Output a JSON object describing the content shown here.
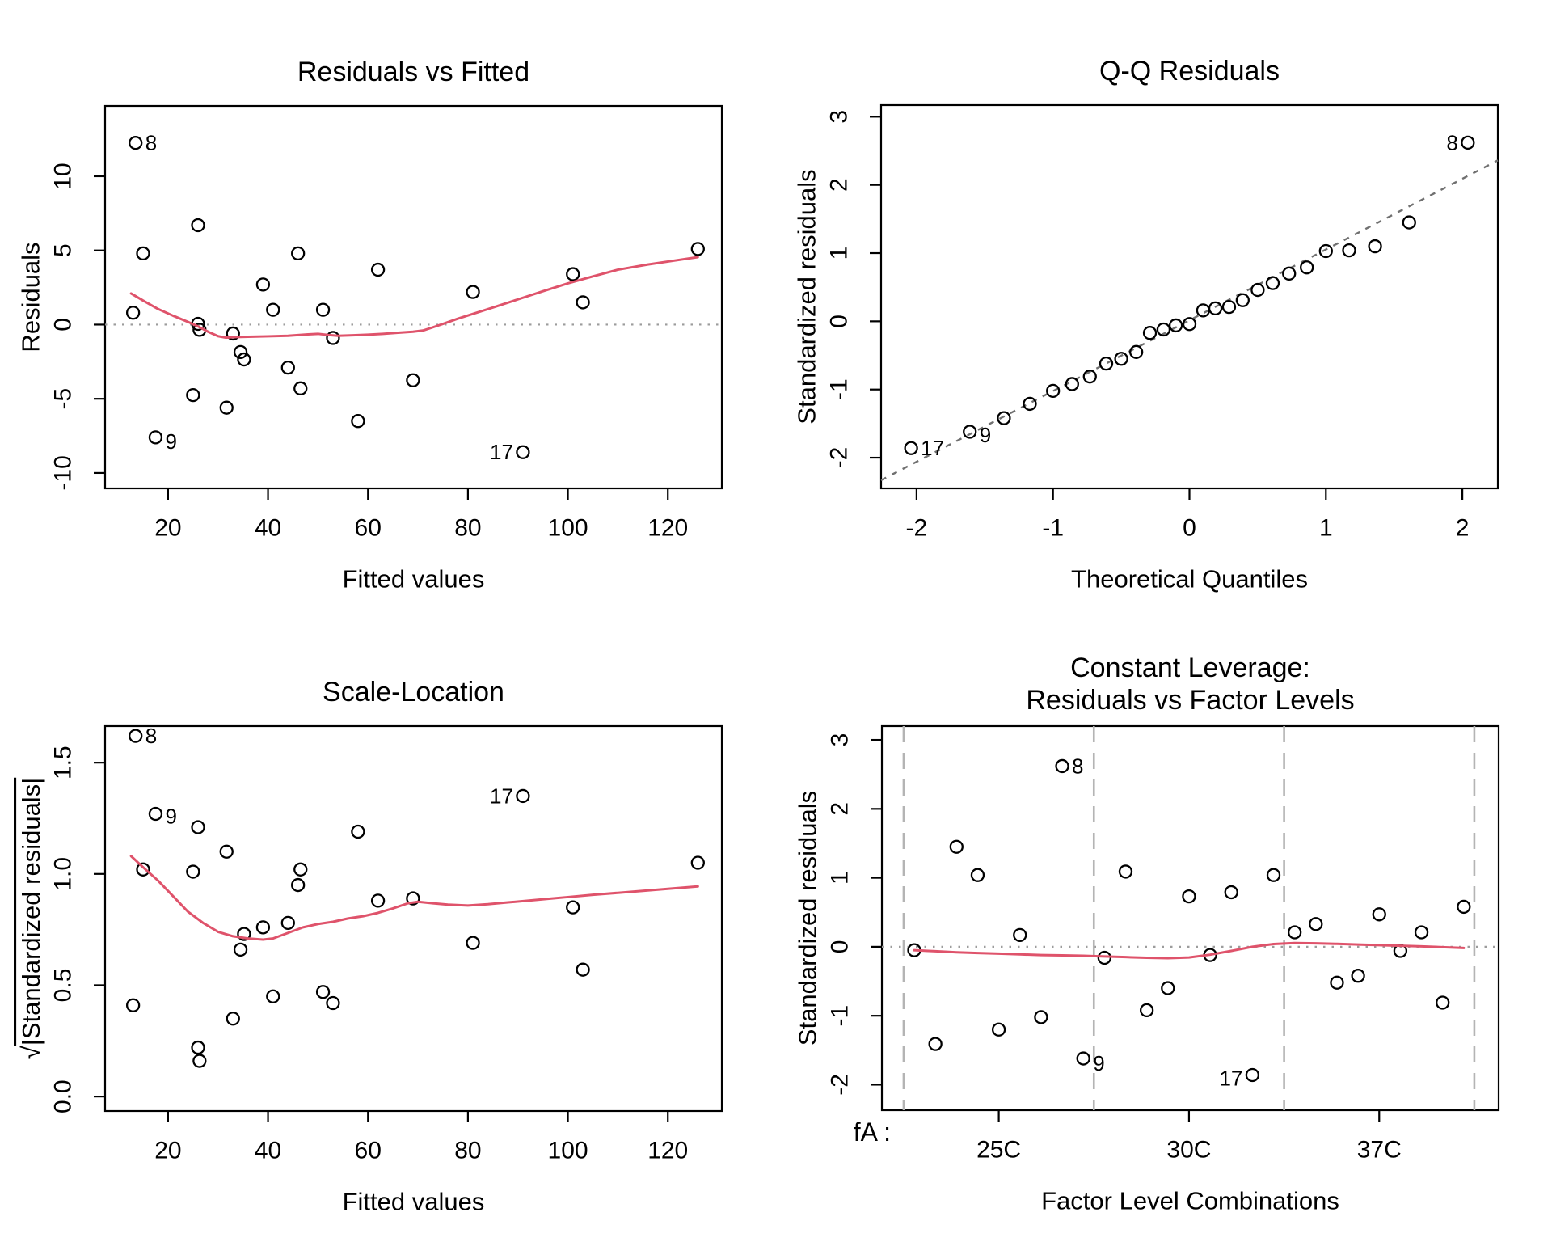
{
  "figure": {
    "description": "R lm diagnostic plots 2x2",
    "background": "#ffffff",
    "colors": {
      "axis": "#000000",
      "point_stroke": "#000000",
      "smooth_line": "#DF536B",
      "zero_dotted": "#9c9c9c",
      "qq_line": "#707070",
      "separator": "#b4b4b4"
    }
  },
  "chart_data": [
    {
      "type": "scatter",
      "id": "residuals-vs-fitted",
      "title": "Residuals vs Fitted",
      "xlabel": "Fitted values",
      "ylabel": "Residuals",
      "xlim": [
        7.4,
        130.8
      ],
      "ylim": [
        -11.04,
        14.74
      ],
      "xticks": [
        {
          "v": 20,
          "t": "20"
        },
        {
          "v": 40,
          "t": "40"
        },
        {
          "v": 60,
          "t": "60"
        },
        {
          "v": 80,
          "t": "80"
        },
        {
          "v": 100,
          "t": "100"
        },
        {
          "v": 120,
          "t": "120"
        }
      ],
      "yticks": [
        {
          "v": -10,
          "t": "-10"
        },
        {
          "v": -5,
          "t": "-5"
        },
        {
          "v": 0,
          "t": "0"
        },
        {
          "v": 5,
          "t": "5"
        },
        {
          "v": 10,
          "t": "10"
        }
      ],
      "zero_line": true,
      "points": [
        [
          13,
          0.8
        ],
        [
          13.5,
          12.25
        ],
        [
          15,
          4.8
        ],
        [
          17.5,
          -7.6
        ],
        [
          25,
          -4.75
        ],
        [
          26,
          6.7
        ],
        [
          26,
          0.05
        ],
        [
          26.3,
          -0.35
        ],
        [
          31.7,
          -5.6
        ],
        [
          33,
          -0.6
        ],
        [
          34.5,
          -1.85
        ],
        [
          35.2,
          -2.35
        ],
        [
          39,
          2.7
        ],
        [
          41,
          1.0
        ],
        [
          44,
          -2.9
        ],
        [
          46,
          4.8
        ],
        [
          46.5,
          -4.3
        ],
        [
          51,
          1.0
        ],
        [
          53,
          -0.9
        ],
        [
          58,
          -6.5
        ],
        [
          62,
          3.7
        ],
        [
          69,
          -3.75
        ],
        [
          81,
          2.2
        ],
        [
          91,
          -8.6
        ],
        [
          101,
          3.4
        ],
        [
          103,
          1.5
        ],
        [
          126,
          5.1
        ]
      ],
      "point_labels": [
        {
          "t": "8",
          "x": 13.5,
          "y": 12.25,
          "side": "right",
          "dy": 0
        },
        {
          "t": "9",
          "x": 17.5,
          "y": -7.6,
          "side": "right",
          "dy": 5
        },
        {
          "t": "17",
          "x": 91,
          "y": -8.6,
          "side": "left",
          "dy": 0
        }
      ],
      "smooth": [
        [
          12.6,
          2.1
        ],
        [
          15,
          1.62
        ],
        [
          18,
          1.05
        ],
        [
          21,
          0.6
        ],
        [
          24,
          0.18
        ],
        [
          26,
          -0.12
        ],
        [
          28,
          -0.48
        ],
        [
          30,
          -0.78
        ],
        [
          31.5,
          -0.88
        ],
        [
          33,
          -0.85
        ],
        [
          36,
          -0.82
        ],
        [
          40,
          -0.79
        ],
        [
          44,
          -0.75
        ],
        [
          48,
          -0.66
        ],
        [
          50,
          -0.62
        ],
        [
          52,
          -0.7
        ],
        [
          54,
          -0.75
        ],
        [
          57,
          -0.72
        ],
        [
          60,
          -0.68
        ],
        [
          63,
          -0.62
        ],
        [
          66,
          -0.55
        ],
        [
          69,
          -0.48
        ],
        [
          71,
          -0.4
        ],
        [
          73,
          -0.18
        ],
        [
          75,
          0.05
        ],
        [
          78,
          0.4
        ],
        [
          81,
          0.72
        ],
        [
          85,
          1.15
        ],
        [
          90,
          1.7
        ],
        [
          95,
          2.25
        ],
        [
          100,
          2.78
        ],
        [
          105,
          3.25
        ],
        [
          110,
          3.7
        ],
        [
          116,
          4.05
        ],
        [
          121,
          4.3
        ],
        [
          126,
          4.55
        ]
      ]
    },
    {
      "type": "scatter",
      "id": "qq-residuals",
      "title": "Q-Q Residuals",
      "xlabel": "Theoretical Quantiles",
      "ylabel": "Standardized residuals",
      "xlim": [
        -2.26,
        2.26
      ],
      "ylim": [
        -2.45,
        3.17
      ],
      "xticks": [
        {
          "v": -2,
          "t": "-2"
        },
        {
          "v": -1,
          "t": "-1"
        },
        {
          "v": 0,
          "t": "0"
        },
        {
          "v": 1,
          "t": "1"
        },
        {
          "v": 2,
          "t": "2"
        }
      ],
      "yticks": [
        {
          "v": -2,
          "t": "-2"
        },
        {
          "v": -1,
          "t": "-1"
        },
        {
          "v": 0,
          "t": "0"
        },
        {
          "v": 1,
          "t": "1"
        },
        {
          "v": 2,
          "t": "2"
        },
        {
          "v": 3,
          "t": "3"
        }
      ],
      "qq_line": {
        "x1": -2.26,
        "y1": -2.33,
        "x2": 2.26,
        "y2": 2.36
      },
      "points": [
        [
          -2.04,
          -1.86
        ],
        [
          -1.61,
          -1.62
        ],
        [
          -1.36,
          -1.42
        ],
        [
          -1.17,
          -1.21
        ],
        [
          -1.0,
          -1.02
        ],
        [
          -0.86,
          -0.92
        ],
        [
          -0.73,
          -0.81
        ],
        [
          -0.61,
          -0.62
        ],
        [
          -0.5,
          -0.55
        ],
        [
          -0.39,
          -0.45
        ],
        [
          -0.29,
          -0.17
        ],
        [
          -0.19,
          -0.12
        ],
        [
          -0.1,
          -0.06
        ],
        [
          0.0,
          -0.04
        ],
        [
          0.1,
          0.16
        ],
        [
          0.19,
          0.19
        ],
        [
          0.29,
          0.21
        ],
        [
          0.39,
          0.31
        ],
        [
          0.5,
          0.46
        ],
        [
          0.61,
          0.56
        ],
        [
          0.73,
          0.7
        ],
        [
          0.86,
          0.79
        ],
        [
          1.0,
          1.03
        ],
        [
          1.17,
          1.04
        ],
        [
          1.36,
          1.1
        ],
        [
          1.61,
          1.45
        ],
        [
          2.04,
          2.62
        ]
      ],
      "point_labels": [
        {
          "t": "17",
          "x": -2.04,
          "y": -1.86,
          "side": "right",
          "dy": 0
        },
        {
          "t": "9",
          "x": -1.61,
          "y": -1.62,
          "side": "right",
          "dy": 4
        },
        {
          "t": "8",
          "x": 2.04,
          "y": 2.62,
          "side": "left",
          "dy": 0
        }
      ]
    },
    {
      "type": "scatter",
      "id": "scale-location",
      "title": "Scale-Location",
      "xlabel": "Fitted values",
      "ylabel": "√|Standardized residuals|",
      "ylabel_parts": [
        {
          "t": "√",
          "overline": false
        },
        {
          "t": "|Standardized residuals|",
          "overline": true
        }
      ],
      "xlim": [
        7.4,
        130.8
      ],
      "ylim": [
        -0.065,
        1.664
      ],
      "xticks": [
        {
          "v": 20,
          "t": "20"
        },
        {
          "v": 40,
          "t": "40"
        },
        {
          "v": 60,
          "t": "60"
        },
        {
          "v": 80,
          "t": "80"
        },
        {
          "v": 100,
          "t": "100"
        },
        {
          "v": 120,
          "t": "120"
        }
      ],
      "yticks": [
        {
          "v": 0.0,
          "t": "0.0"
        },
        {
          "v": 0.5,
          "t": "0.5"
        },
        {
          "v": 1.0,
          "t": "1.0"
        },
        {
          "v": 1.5,
          "t": "1.5"
        }
      ],
      "zero_line": false,
      "points": [
        [
          13,
          0.41
        ],
        [
          13.5,
          1.62
        ],
        [
          15,
          1.02
        ],
        [
          17.5,
          1.27
        ],
        [
          25,
          1.01
        ],
        [
          26,
          1.21
        ],
        [
          26,
          0.22
        ],
        [
          26.3,
          0.16
        ],
        [
          31.7,
          1.1
        ],
        [
          33,
          0.35
        ],
        [
          34.5,
          0.66
        ],
        [
          35.2,
          0.73
        ],
        [
          39,
          0.76
        ],
        [
          41,
          0.45
        ],
        [
          44,
          0.78
        ],
        [
          46,
          0.95
        ],
        [
          46.5,
          1.02
        ],
        [
          51,
          0.47
        ],
        [
          53,
          0.42
        ],
        [
          58,
          1.19
        ],
        [
          62,
          0.88
        ],
        [
          69,
          0.89
        ],
        [
          81,
          0.69
        ],
        [
          91,
          1.35
        ],
        [
          101,
          0.85
        ],
        [
          103,
          0.57
        ],
        [
          126,
          1.05
        ]
      ],
      "point_labels": [
        {
          "t": "8",
          "x": 13.5,
          "y": 1.62,
          "side": "right",
          "dy": 0
        },
        {
          "t": "9",
          "x": 17.5,
          "y": 1.27,
          "side": "right",
          "dy": 3
        },
        {
          "t": "17",
          "x": 91,
          "y": 1.35,
          "side": "left",
          "dy": 0
        }
      ],
      "smooth": [
        [
          12.6,
          1.08
        ],
        [
          15,
          1.03
        ],
        [
          18,
          0.97
        ],
        [
          21,
          0.9
        ],
        [
          24,
          0.83
        ],
        [
          27,
          0.78
        ],
        [
          30,
          0.74
        ],
        [
          33,
          0.72
        ],
        [
          36,
          0.71
        ],
        [
          39,
          0.705
        ],
        [
          41,
          0.71
        ],
        [
          44,
          0.735
        ],
        [
          47,
          0.76
        ],
        [
          50,
          0.775
        ],
        [
          53,
          0.785
        ],
        [
          56,
          0.8
        ],
        [
          59,
          0.81
        ],
        [
          62,
          0.825
        ],
        [
          65,
          0.845
        ],
        [
          68,
          0.868
        ],
        [
          70,
          0.875
        ],
        [
          73,
          0.868
        ],
        [
          76,
          0.862
        ],
        [
          80,
          0.858
        ],
        [
          84,
          0.864
        ],
        [
          88,
          0.872
        ],
        [
          92,
          0.88
        ],
        [
          96,
          0.888
        ],
        [
          100,
          0.896
        ],
        [
          105,
          0.906
        ],
        [
          110,
          0.915
        ],
        [
          115,
          0.924
        ],
        [
          120,
          0.933
        ],
        [
          126,
          0.944
        ]
      ]
    },
    {
      "type": "scatter",
      "id": "constant-leverage",
      "title_lines": [
        "Constant Leverage:",
        "Residuals vs Factor Levels"
      ],
      "xlabel": "Factor Level Combinations",
      "ylabel": "Standardized residuals",
      "xlim": [
        -0.53,
        28.65
      ],
      "ylim": [
        -2.37,
        3.2
      ],
      "xticks": [],
      "yticks": [
        {
          "v": -2,
          "t": "-2"
        },
        {
          "v": -1,
          "t": "-1"
        },
        {
          "v": 0,
          "t": "0"
        },
        {
          "v": 1,
          "t": "1"
        },
        {
          "v": 2,
          "t": "2"
        },
        {
          "v": 3,
          "t": "3"
        }
      ],
      "zero_line": true,
      "factor_axis": {
        "prefix": "fA :",
        "separators": [
          0.5,
          9.5,
          18.5,
          27.5
        ],
        "ticks": [
          {
            "pos": 5,
            "label": "25C"
          },
          {
            "pos": 14,
            "label": "30C"
          },
          {
            "pos": 23,
            "label": "37C"
          }
        ]
      },
      "points": [
        [
          1,
          -0.05
        ],
        [
          2,
          -1.41
        ],
        [
          3,
          1.45
        ],
        [
          4,
          1.04
        ],
        [
          5,
          -1.2
        ],
        [
          6,
          0.17
        ],
        [
          7,
          -1.02
        ],
        [
          8,
          2.62
        ],
        [
          9,
          -1.62
        ],
        [
          10,
          -0.16
        ],
        [
          11,
          1.09
        ],
        [
          12,
          -0.92
        ],
        [
          13,
          -0.6
        ],
        [
          14,
          0.73
        ],
        [
          15,
          -0.12
        ],
        [
          16,
          0.79
        ],
        [
          17,
          -1.86
        ],
        [
          18,
          1.04
        ],
        [
          19,
          0.21
        ],
        [
          20,
          0.33
        ],
        [
          21,
          -0.52
        ],
        [
          22,
          -0.42
        ],
        [
          23,
          0.47
        ],
        [
          24,
          -0.06
        ],
        [
          25,
          0.21
        ],
        [
          26,
          -0.81
        ],
        [
          27,
          0.58
        ]
      ],
      "point_labels": [
        {
          "t": "8",
          "x": 8,
          "y": 2.62,
          "side": "right",
          "dy": 0
        },
        {
          "t": "9",
          "x": 9,
          "y": -1.62,
          "side": "right",
          "dy": 6
        },
        {
          "t": "17",
          "x": 17,
          "y": -1.86,
          "side": "left",
          "dy": 4
        }
      ],
      "smooth": [
        [
          1,
          -0.05
        ],
        [
          2,
          -0.065
        ],
        [
          3,
          -0.08
        ],
        [
          4,
          -0.09
        ],
        [
          5,
          -0.1
        ],
        [
          6,
          -0.11
        ],
        [
          7,
          -0.12
        ],
        [
          8,
          -0.125
        ],
        [
          9,
          -0.13
        ],
        [
          10,
          -0.14
        ],
        [
          11,
          -0.15
        ],
        [
          12,
          -0.16
        ],
        [
          13,
          -0.165
        ],
        [
          14,
          -0.155
        ],
        [
          15,
          -0.115
        ],
        [
          16,
          -0.06
        ],
        [
          17,
          0.0
        ],
        [
          18,
          0.04
        ],
        [
          19,
          0.055
        ],
        [
          20,
          0.05
        ],
        [
          21,
          0.042
        ],
        [
          22,
          0.033
        ],
        [
          23,
          0.024
        ],
        [
          24,
          0.015
        ],
        [
          25,
          0.006
        ],
        [
          26,
          -0.005
        ],
        [
          27,
          -0.018
        ]
      ]
    }
  ]
}
